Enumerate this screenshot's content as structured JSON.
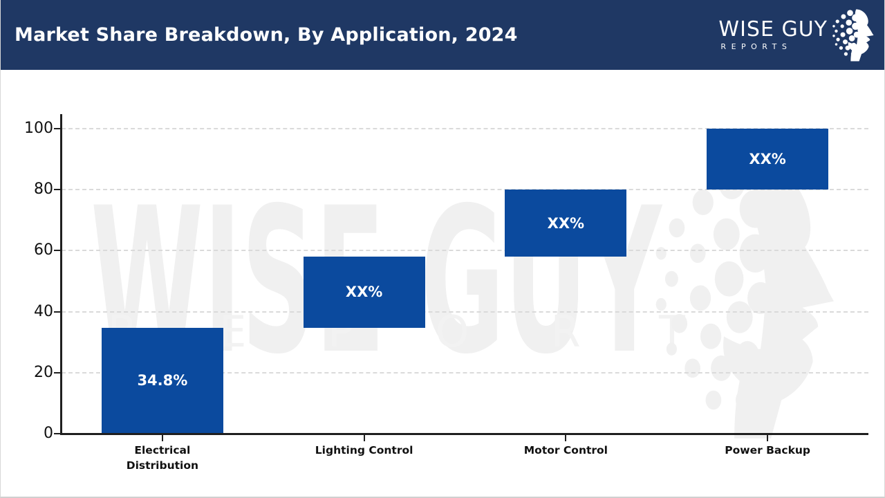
{
  "header": {
    "title": "Market Share Breakdown, By Application, 2024",
    "bg_color": "#1f3864",
    "logo": {
      "brand": "WISE GUY",
      "sub": "REPORTS"
    }
  },
  "watermark": {
    "brand": "WISE GUY",
    "sub": "REPORTS"
  },
  "chart_data": {
    "type": "bar",
    "subtype": "waterfall",
    "title": "Market Share Breakdown, By Application, 2024",
    "categories": [
      "Electrical\nDistribution",
      "Lighting Control",
      "Motor Control",
      "Power Backup"
    ],
    "segments": [
      {
        "category": "Electrical Distribution",
        "start": 0,
        "end": 34.8,
        "label": "34.8%"
      },
      {
        "category": "Lighting Control",
        "start": 34.8,
        "end": 58,
        "label": "XX%"
      },
      {
        "category": "Motor Control",
        "start": 58,
        "end": 80,
        "label": "XX%"
      },
      {
        "category": "Power Backup",
        "start": 80,
        "end": 100,
        "label": "XX%"
      }
    ],
    "xlabel": "",
    "ylabel": "",
    "ylim": [
      0,
      100
    ],
    "yticks": [
      0,
      20,
      40,
      60,
      80,
      100
    ],
    "grid": true,
    "legend": false,
    "bar_color": "#0b4a9e",
    "bar_label_color": "#ffffff",
    "axis_color": "#1f1f1f",
    "gridline_color": "#dadada",
    "watermark_color": "#f0f0f0"
  }
}
